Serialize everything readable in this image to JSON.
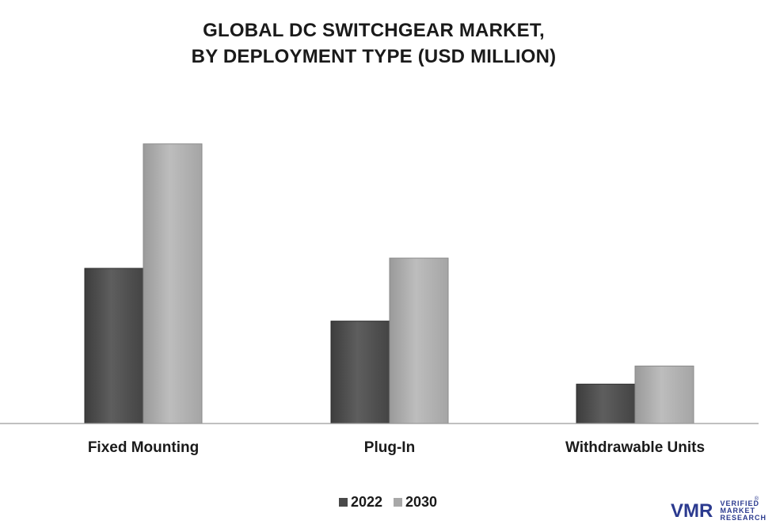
{
  "title": {
    "line1": "GLOBAL DC SWITCHGEAR MARKET,",
    "line2": "BY DEPLOYMENT TYPE (USD MILLION)"
  },
  "chart_data": {
    "type": "bar",
    "title": "GLOBAL DC SWITCHGEAR MARKET, BY DEPLOYMENT TYPE (USD MILLION)",
    "categories": [
      "Fixed Mounting",
      "Plug-In",
      "Withdrawable Units"
    ],
    "series": [
      {
        "name": "2022",
        "values": [
          197,
          130,
          50
        ],
        "color": "#555555"
      },
      {
        "name": "2030",
        "values": [
          355,
          210,
          73
        ],
        "color": "#b0b0b0"
      }
    ],
    "ylim": [
      0,
      400
    ],
    "grid": false,
    "legend": "bottom-center"
  },
  "legend": {
    "items": [
      "2022",
      "2030"
    ]
  },
  "logo": {
    "line1": "VERIFIED",
    "line2": "MARKET",
    "line3": "RESEARCH",
    "mark": "VMR"
  }
}
